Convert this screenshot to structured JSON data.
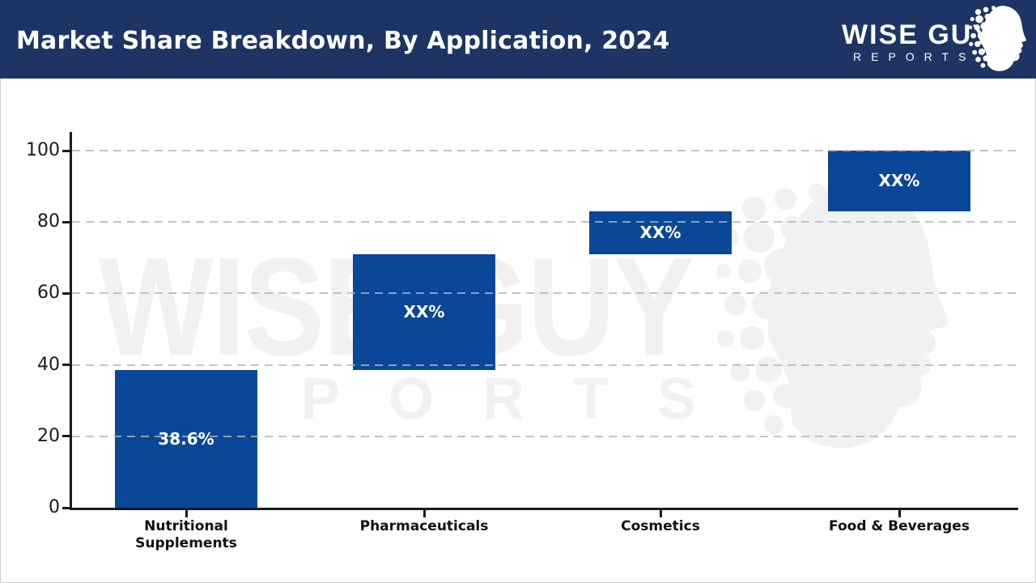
{
  "header": {
    "title": "Market Share Breakdown, By Application, 2024"
  },
  "logo": {
    "brand": "WISE GUY",
    "sub": "REPORTS"
  },
  "watermark": {
    "brand": "WISE GUY",
    "sub": "REPORTS"
  },
  "chart_data": {
    "type": "bar",
    "subtype": "waterfall",
    "title": "Market Share Breakdown, By Application, 2024",
    "xlabel": "",
    "ylabel": "",
    "categories": [
      "Nutritional\nSupplements",
      "Pharmaceuticals",
      "Cosmetics",
      "Food & Beverages"
    ],
    "segments": [
      {
        "category": "Nutritional\nSupplements",
        "start": 0,
        "end": 38.6,
        "value_label": "38.6%"
      },
      {
        "category": "Pharmaceuticals",
        "start": 38.6,
        "end": 71,
        "value_label": "XX%"
      },
      {
        "category": "Cosmetics",
        "start": 71,
        "end": 83,
        "value_label": "XX%"
      },
      {
        "category": "Food & Beverages",
        "start": 83,
        "end": 100,
        "value_label": "XX%"
      }
    ],
    "yticks": [
      0,
      20,
      40,
      60,
      80,
      100
    ],
    "ylim": [
      0,
      105
    ],
    "grid": "horizontal-dashed",
    "legend": "none",
    "bar_color": "#0b4799",
    "value_label_color": "#ffffff"
  },
  "colors": {
    "header_bg": "#1e3464",
    "header_text": "#ffffff",
    "chart_bg": "#ffffff",
    "bar": "#0b4799",
    "axis": "#1a1a1a",
    "gridline": "#cccccc",
    "watermark": "#f1f1f3"
  }
}
